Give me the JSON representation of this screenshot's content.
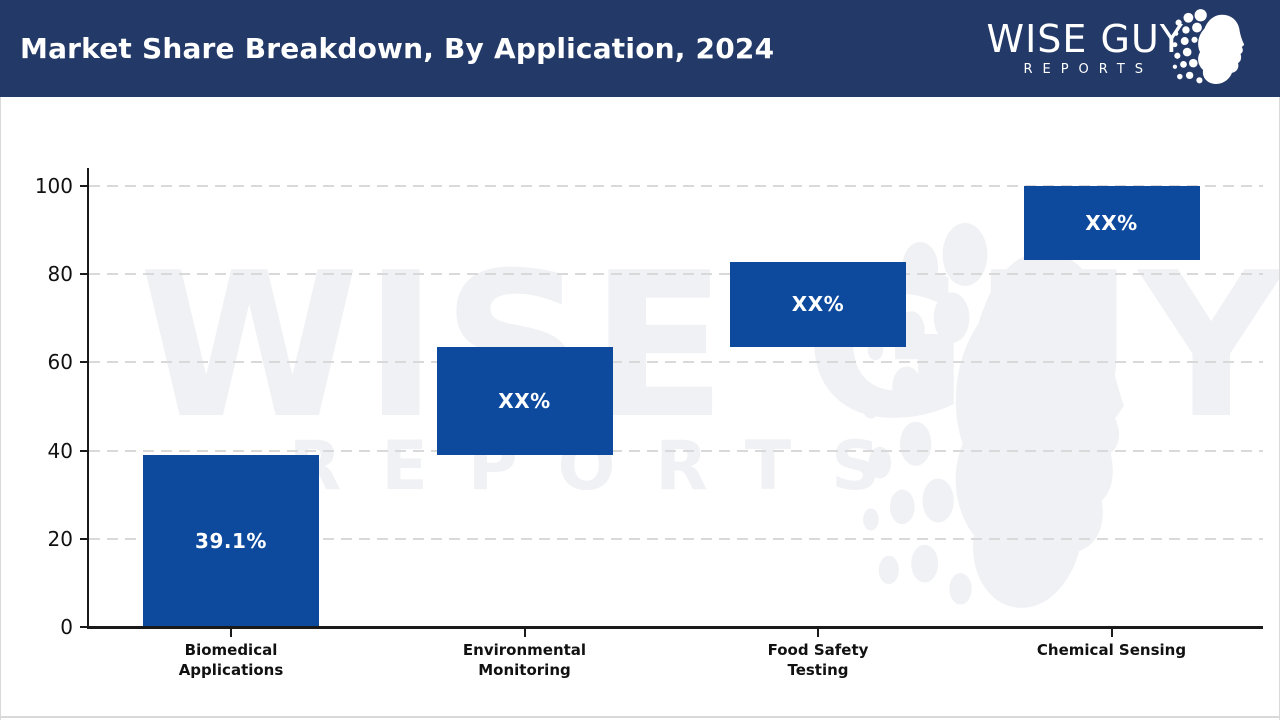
{
  "header": {
    "title": "Market Share Breakdown, By Application, 2024",
    "logo": {
      "wordmark": "WISE GUY",
      "subtext": "REPORTS"
    }
  },
  "watermark": {
    "wordmark": "WISE GUY",
    "subtext": "REPORTS"
  },
  "colors": {
    "header_bg": "#233a68",
    "bar": "#0d4a9e",
    "grid": "#d9d9d9",
    "axis": "#1a1a1a",
    "watermark": "#f0f1f4"
  },
  "chart_data": {
    "type": "bar",
    "variant": "floating-waterfall",
    "title": "Market Share Breakdown, By Application, 2024",
    "xlabel": "",
    "ylabel": "",
    "ylim": [
      0,
      107
    ],
    "yticks": [
      0,
      20,
      40,
      60,
      80,
      100
    ],
    "grid": "horizontal-dashed",
    "legend": "none",
    "bar_color": "#0d4a9e",
    "categories": [
      "Biomedical Applications",
      "Environmental Monitoring",
      "Food Safety Testing",
      "Chemical Sensing"
    ],
    "bars": [
      {
        "category": "Biomedical Applications",
        "label_lines": [
          "Biomedical",
          "Applications"
        ],
        "start": 0,
        "end": 39.1,
        "value_label": "39.1%"
      },
      {
        "category": "Environmental Monitoring",
        "label_lines": [
          "Environmental",
          "Monitoring"
        ],
        "start": 39.1,
        "end": 63.5,
        "value_label": "XX%"
      },
      {
        "category": "Food Safety Testing",
        "label_lines": [
          "Food Safety",
          "Testing"
        ],
        "start": 63.5,
        "end": 82.8,
        "value_label": "XX%"
      },
      {
        "category": "Chemical Sensing",
        "label_lines": [
          "Chemical Sensing"
        ],
        "start": 83.2,
        "end": 100,
        "value_label": "XX%"
      }
    ]
  }
}
